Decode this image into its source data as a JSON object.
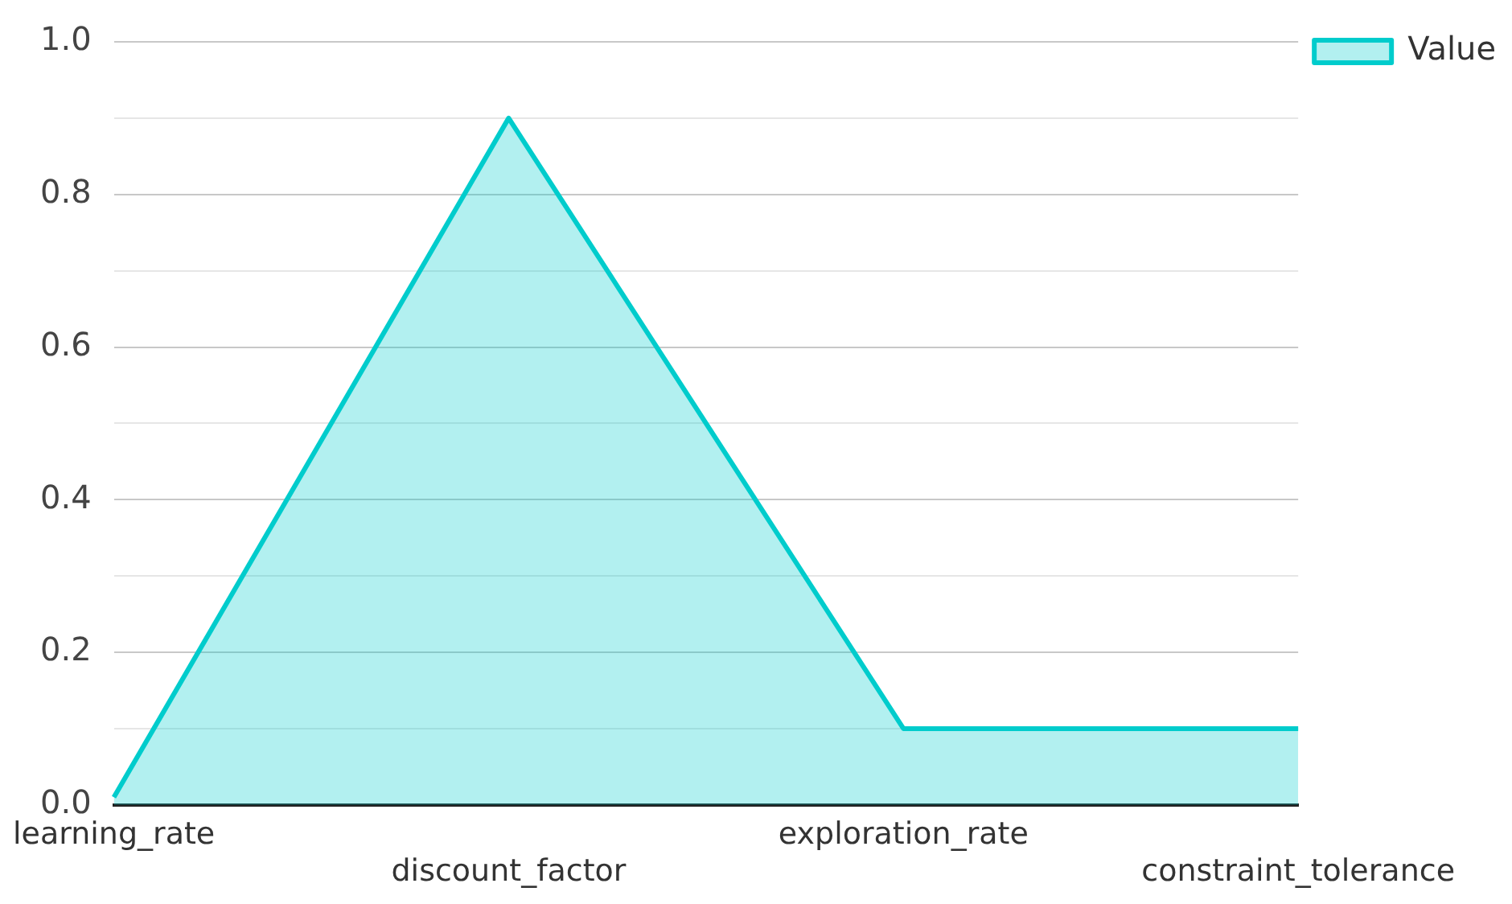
{
  "chart_data": {
    "type": "area",
    "categories": [
      "learning_rate",
      "discount_factor",
      "exploration_rate",
      "constraint_tolerance"
    ],
    "series": [
      {
        "name": "Value",
        "color": "#00cccc",
        "values": [
          0.01,
          0.9,
          0.1,
          0.1
        ]
      }
    ],
    "ylim": [
      0,
      1
    ],
    "yticks": [
      {
        "value": 0,
        "label": "0.0"
      },
      {
        "value": 0.1,
        "label": null
      },
      {
        "value": 0.2,
        "label": "0.2"
      },
      {
        "value": 0.3,
        "label": null
      },
      {
        "value": 0.4,
        "label": "0.4"
      },
      {
        "value": 0.5,
        "label": null
      },
      {
        "value": 0.6,
        "label": "0.6"
      },
      {
        "value": 0.7,
        "label": null
      },
      {
        "value": 0.8,
        "label": "0.8"
      },
      {
        "value": 0.9,
        "label": null
      },
      {
        "value": 1,
        "label": "1.0"
      }
    ],
    "grid": "y",
    "legend": "top right",
    "marker": "none"
  }
}
